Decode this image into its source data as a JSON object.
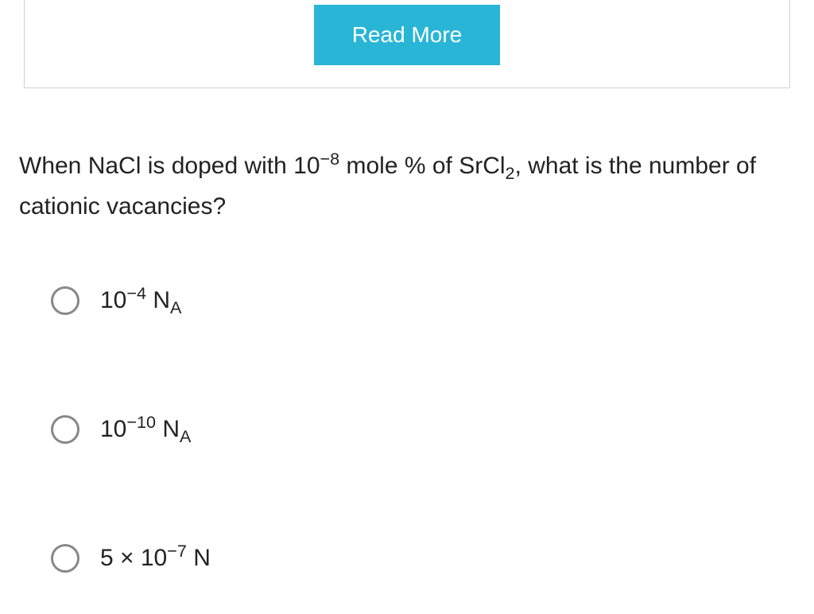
{
  "readMore": {
    "label": "Read More",
    "background_color": "#29b6d6",
    "text_color": "#ffffff",
    "font_size": 28
  },
  "question": {
    "prefix": "When NaCl is doped with 10",
    "exp1": "−8",
    "middle": " mole % of SrCl",
    "sub1": "2",
    "suffix": ", what is the number of cationic vacancies?",
    "font_size": 30,
    "text_color": "#222222"
  },
  "options": [
    {
      "base": "10",
      "exp": "−4",
      "n": " N",
      "nsub": "A",
      "prefix": ""
    },
    {
      "base": "10",
      "exp": "−10",
      "n": " N",
      "nsub": "A",
      "prefix": ""
    },
    {
      "base": "10",
      "exp": "−7",
      "n": " N",
      "nsub": "",
      "prefix": "5 × "
    }
  ],
  "styling": {
    "body_background": "#ffffff",
    "border_color": "#d0d0d0",
    "radio_border_color": "#888888",
    "radio_size": 36,
    "option_font_size": 30
  }
}
